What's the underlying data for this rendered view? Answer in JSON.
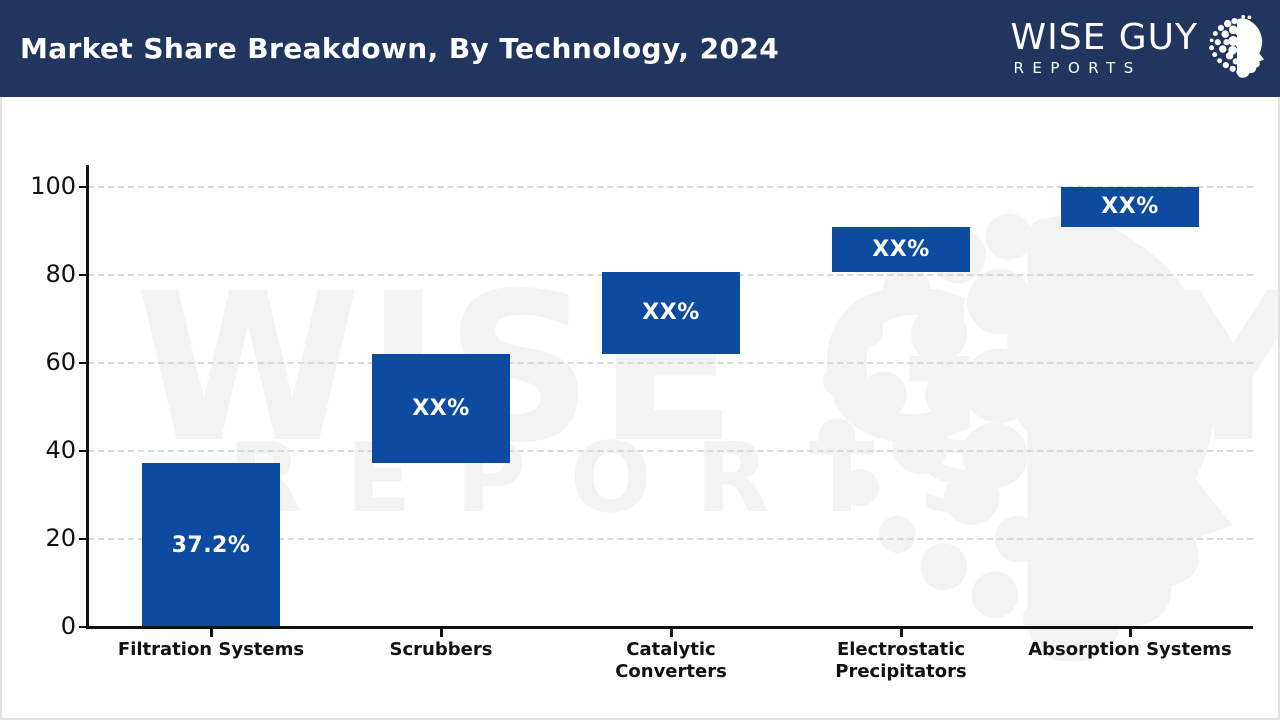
{
  "header": {
    "title": "Market Share Breakdown, By Technology, 2024",
    "logo_line1": "WISE GUY",
    "logo_line2": "REPORTS"
  },
  "watermark": {
    "line1": "WISE GUY",
    "line2": "REPORTS"
  },
  "colors": {
    "header_bg": "#21365E",
    "bar": "#0C4BA0",
    "bar_label": "#FFFFFF",
    "grid": "#D8D8D8",
    "axis": "#111111",
    "watermark": "#F3F3F3"
  },
  "chart_data": {
    "type": "bar",
    "subtype": "waterfall",
    "title": "Market Share Breakdown, By Technology, 2024",
    "categories": [
      "Filtration Systems",
      "Scrubbers",
      "Catalytic Converters",
      "Electrostatic Precipitators",
      "Absorption Systems"
    ],
    "category_label_lines": [
      [
        "Filtration Systems"
      ],
      [
        "Scrubbers"
      ],
      [
        "Catalytic",
        "Converters"
      ],
      [
        "Electrostatic",
        "Precipitators"
      ],
      [
        "Absorption Systems"
      ]
    ],
    "series": [
      {
        "name": "Market Share (%)",
        "segment_start": [
          0,
          37.2,
          62.0,
          80.7,
          90.8
        ],
        "segment_end": [
          37.2,
          62.0,
          80.7,
          90.8,
          100.0
        ],
        "bar_labels": [
          "37.2%",
          "XX%",
          "XX%",
          "XX%",
          "XX%"
        ]
      }
    ],
    "xlabel": "",
    "ylabel": "",
    "yticks": [
      0,
      20,
      40,
      60,
      80,
      100
    ],
    "ylim": [
      0,
      104
    ],
    "grid": "horizontal-dashed",
    "legend": "none"
  }
}
